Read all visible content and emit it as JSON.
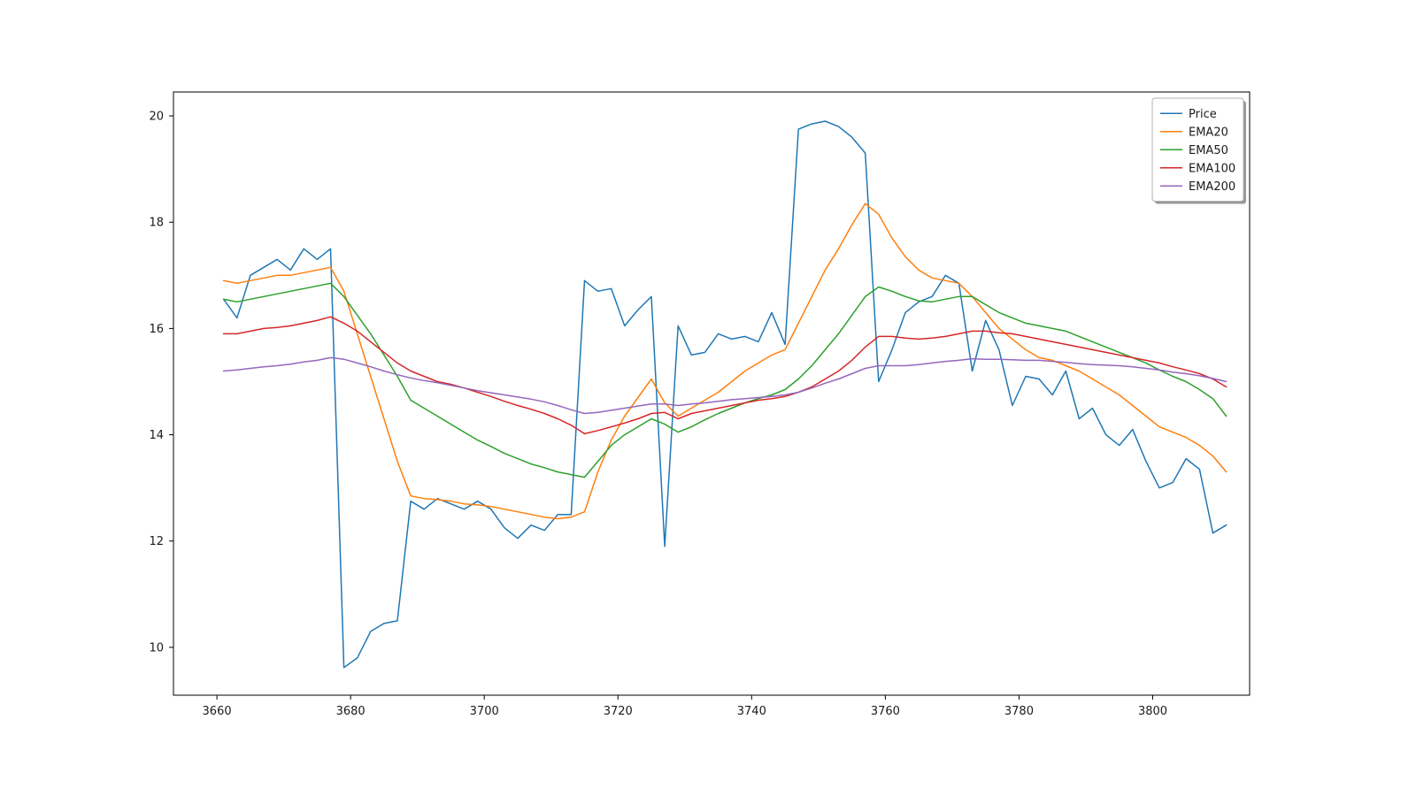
{
  "figure": {
    "background": "#ffffff",
    "axes_edge_color": "#000000",
    "tick_color": "#000000",
    "legend_border_color": "#b0b0b0",
    "legend_background": "#ffffff",
    "legend_shadow_color": "#999999"
  },
  "chart_data": {
    "type": "line",
    "title": "",
    "xlabel": "",
    "ylabel": "",
    "grid": false,
    "legend_position": "upper right",
    "xlim": [
      3653.5,
      3814.5
    ],
    "ylim": [
      9.1,
      20.45
    ],
    "x_ticks": [
      3660,
      3680,
      3700,
      3720,
      3740,
      3760,
      3780,
      3800
    ],
    "y_ticks": [
      10,
      12,
      14,
      16,
      18,
      20
    ],
    "x": [
      3661,
      3663,
      3665,
      3667,
      3669,
      3671,
      3673,
      3675,
      3677,
      3679,
      3681,
      3683,
      3685,
      3687,
      3689,
      3691,
      3693,
      3695,
      3697,
      3699,
      3701,
      3703,
      3705,
      3707,
      3709,
      3711,
      3713,
      3715,
      3717,
      3719,
      3721,
      3723,
      3725,
      3727,
      3729,
      3731,
      3733,
      3735,
      3737,
      3739,
      3741,
      3743,
      3745,
      3747,
      3749,
      3751,
      3753,
      3755,
      3757,
      3759,
      3761,
      3763,
      3765,
      3767,
      3769,
      3771,
      3773,
      3775,
      3777,
      3779,
      3781,
      3783,
      3785,
      3787,
      3789,
      3791,
      3793,
      3795,
      3797,
      3799,
      3801,
      3803,
      3805,
      3807,
      3809,
      3811
    ],
    "series": [
      {
        "name": "Price",
        "color": "#1f77b4",
        "values": [
          16.55,
          16.2,
          17.0,
          17.15,
          17.3,
          17.1,
          17.5,
          17.3,
          17.5,
          9.62,
          9.8,
          10.3,
          10.45,
          10.5,
          12.75,
          12.6,
          12.8,
          12.7,
          12.6,
          12.75,
          12.6,
          12.25,
          12.05,
          12.3,
          12.2,
          12.5,
          12.5,
          16.9,
          16.7,
          16.75,
          16.05,
          16.35,
          16.6,
          11.9,
          16.05,
          15.5,
          15.55,
          15.9,
          15.8,
          15.85,
          15.75,
          16.3,
          15.7,
          19.75,
          19.85,
          19.9,
          19.8,
          19.6,
          19.3,
          15.0,
          15.6,
          16.3,
          16.5,
          16.6,
          17.0,
          16.85,
          15.2,
          16.15,
          15.6,
          14.55,
          15.1,
          15.05,
          14.75,
          15.2,
          14.3,
          14.5,
          14.0,
          13.8,
          14.1,
          13.5,
          13.0,
          13.1,
          13.55,
          13.35,
          12.15,
          12.3
        ]
      },
      {
        "name": "EMA20",
        "color": "#ff7f0e",
        "values": [
          16.9,
          16.85,
          16.9,
          16.95,
          17.0,
          17.0,
          17.05,
          17.1,
          17.15,
          16.7,
          15.9,
          15.1,
          14.3,
          13.5,
          12.85,
          12.8,
          12.78,
          12.75,
          12.7,
          12.68,
          12.65,
          12.6,
          12.55,
          12.5,
          12.45,
          12.42,
          12.45,
          12.55,
          13.3,
          13.9,
          14.35,
          14.7,
          15.05,
          14.6,
          14.35,
          14.5,
          14.65,
          14.8,
          15.0,
          15.2,
          15.35,
          15.5,
          15.6,
          16.1,
          16.6,
          17.1,
          17.5,
          17.95,
          18.35,
          18.15,
          17.7,
          17.35,
          17.1,
          16.95,
          16.9,
          16.85,
          16.6,
          16.3,
          16.0,
          15.8,
          15.6,
          15.45,
          15.4,
          15.3,
          15.2,
          15.05,
          14.9,
          14.75,
          14.55,
          14.35,
          14.15,
          14.05,
          13.95,
          13.8,
          13.6,
          13.3
        ]
      },
      {
        "name": "EMA50",
        "color": "#2ca02c",
        "values": [
          16.55,
          16.5,
          16.55,
          16.6,
          16.65,
          16.7,
          16.75,
          16.8,
          16.85,
          16.6,
          16.25,
          15.9,
          15.5,
          15.1,
          14.65,
          14.5,
          14.35,
          14.2,
          14.05,
          13.9,
          13.78,
          13.65,
          13.55,
          13.45,
          13.38,
          13.3,
          13.25,
          13.2,
          13.5,
          13.8,
          14.0,
          14.15,
          14.3,
          14.2,
          14.05,
          14.15,
          14.28,
          14.4,
          14.5,
          14.6,
          14.68,
          14.75,
          14.85,
          15.05,
          15.3,
          15.6,
          15.9,
          16.25,
          16.6,
          16.78,
          16.7,
          16.6,
          16.52,
          16.5,
          16.55,
          16.6,
          16.6,
          16.45,
          16.3,
          16.2,
          16.1,
          16.05,
          16.0,
          15.95,
          15.85,
          15.75,
          15.65,
          15.55,
          15.45,
          15.35,
          15.22,
          15.1,
          15.0,
          14.85,
          14.68,
          14.35
        ]
      },
      {
        "name": "EMA100",
        "color": "#d62728",
        "values": [
          15.9,
          15.9,
          15.95,
          16.0,
          16.02,
          16.05,
          16.1,
          16.15,
          16.22,
          16.1,
          15.95,
          15.75,
          15.55,
          15.35,
          15.2,
          15.1,
          15.0,
          14.95,
          14.88,
          14.8,
          14.72,
          14.63,
          14.55,
          14.48,
          14.4,
          14.3,
          14.18,
          14.02,
          14.08,
          14.15,
          14.22,
          14.3,
          14.4,
          14.42,
          14.3,
          14.4,
          14.45,
          14.5,
          14.55,
          14.6,
          14.65,
          14.68,
          14.72,
          14.8,
          14.9,
          15.05,
          15.2,
          15.4,
          15.65,
          15.85,
          15.85,
          15.82,
          15.8,
          15.82,
          15.85,
          15.9,
          15.95,
          15.95,
          15.92,
          15.9,
          15.85,
          15.8,
          15.75,
          15.7,
          15.65,
          15.6,
          15.55,
          15.5,
          15.45,
          15.4,
          15.35,
          15.28,
          15.22,
          15.15,
          15.05,
          14.9
        ]
      },
      {
        "name": "EMA200",
        "color": "#9467bd",
        "values": [
          15.2,
          15.22,
          15.25,
          15.28,
          15.3,
          15.33,
          15.37,
          15.4,
          15.45,
          15.42,
          15.35,
          15.28,
          15.2,
          15.13,
          15.07,
          15.02,
          14.98,
          14.93,
          14.88,
          14.83,
          14.79,
          14.75,
          14.71,
          14.67,
          14.62,
          14.55,
          14.47,
          14.4,
          14.42,
          14.46,
          14.5,
          14.54,
          14.58,
          14.58,
          14.55,
          14.58,
          14.6,
          14.63,
          14.66,
          14.68,
          14.7,
          14.72,
          14.75,
          14.8,
          14.88,
          14.97,
          15.05,
          15.15,
          15.25,
          15.3,
          15.3,
          15.3,
          15.32,
          15.35,
          15.38,
          15.4,
          15.43,
          15.42,
          15.42,
          15.41,
          15.4,
          15.4,
          15.38,
          15.36,
          15.34,
          15.32,
          15.31,
          15.3,
          15.28,
          15.25,
          15.22,
          15.18,
          15.15,
          15.11,
          15.06,
          15.0
        ]
      }
    ]
  }
}
